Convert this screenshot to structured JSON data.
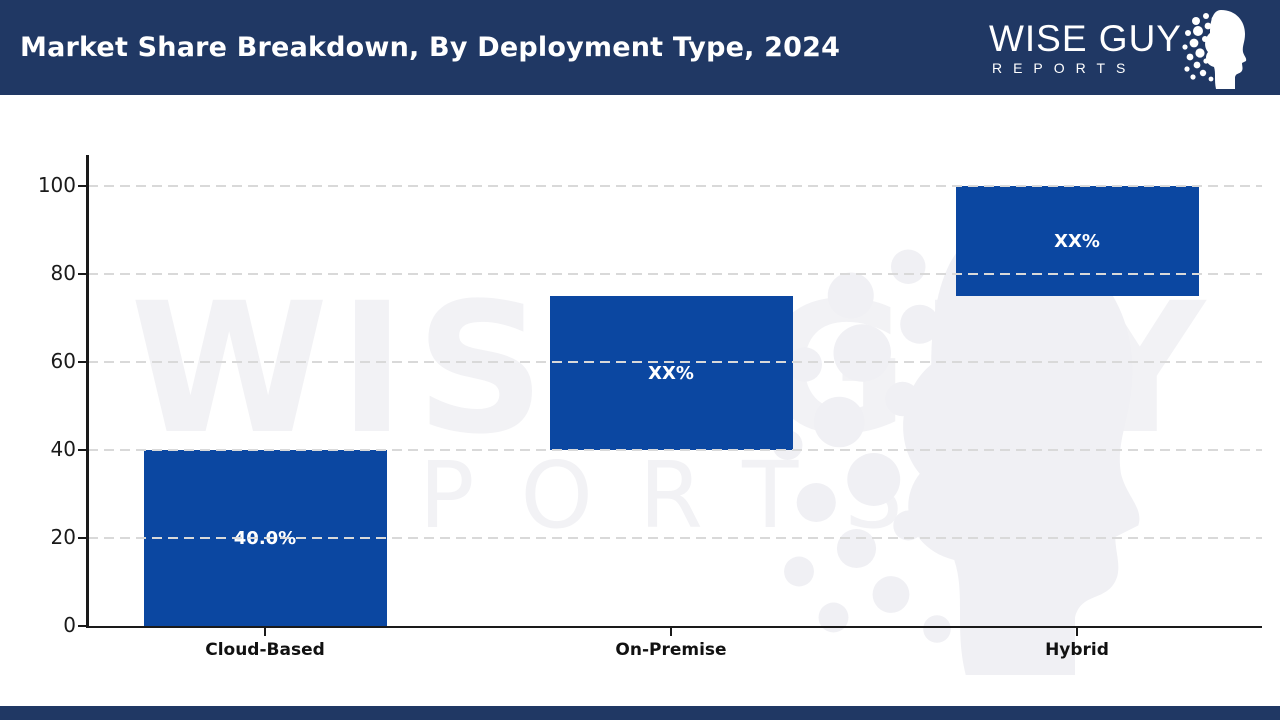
{
  "header": {
    "title": "Market Share Breakdown, By Deployment Type, 2024",
    "bg_color": "#203864",
    "logo": {
      "line1": "WISE GUY",
      "line2": "REPORTS"
    }
  },
  "watermark": {
    "line1": "WISE GUY",
    "line2": "REPORTS"
  },
  "footer": {
    "bg_color": "#203864"
  },
  "chart_data": {
    "type": "bar",
    "subtype": "stacked-waterfall",
    "title": "Market Share Breakdown, By Deployment Type, 2024",
    "categories": [
      "Cloud-Based",
      "On-Premise",
      "Hybrid"
    ],
    "segments": [
      {
        "category": "Cloud-Based",
        "start": 0,
        "end": 40,
        "label": "40.0%"
      },
      {
        "category": "On-Premise",
        "start": 40,
        "end": 75,
        "label": "XX%"
      },
      {
        "category": "Hybrid",
        "start": 75,
        "end": 100,
        "label": "XX%"
      }
    ],
    "yticks": [
      0,
      20,
      40,
      60,
      80,
      100
    ],
    "ylim": [
      0,
      106
    ],
    "xlabel": "",
    "ylabel": "",
    "bar_color": "#0b47a1",
    "label_color": "#ffffff",
    "grid": "horizontal-dashed-over-bars",
    "grid_color": "#d9d9d9",
    "axis_color": "#1a1a1a",
    "legend": "none"
  }
}
